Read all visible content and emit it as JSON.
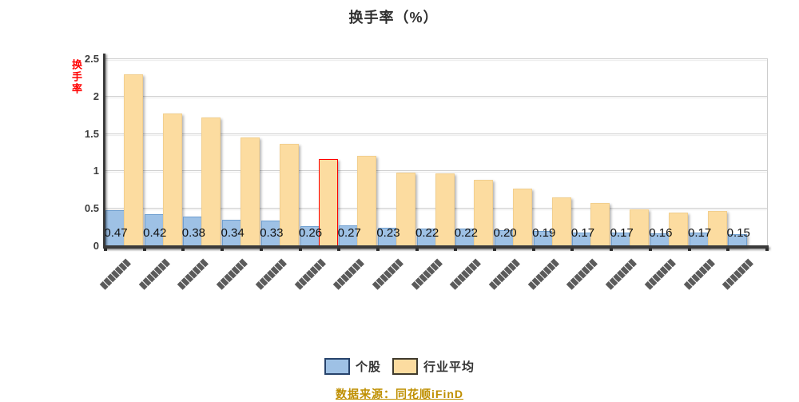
{
  "title": "换手率（%）",
  "y_axis": {
    "unit_label": "换手率",
    "tick_labels": [
      "0",
      "0.5",
      "1",
      "1.5",
      "2",
      "2.5"
    ]
  },
  "legend": {
    "series1_label": "个股",
    "series2_label": "行业平均"
  },
  "footer": {
    "source_link": "数据来源：同花顺iFinD"
  },
  "colors": {
    "series1_fill": "#9EC1E5",
    "series2_fill": "#FCDCA0",
    "highlight_border": "#FF0000",
    "unit_label_red": "#FF0000",
    "footer_gold": "#BF8F00",
    "grid": "#CFCFCF",
    "axis": "#3A3A3A"
  },
  "chart_data": {
    "type": "bar",
    "title": "换手率（%）",
    "xlabel": "",
    "ylabel": "换手率",
    "ylim": [
      0,
      2.5
    ],
    "yticks": [
      0,
      0.5,
      1,
      1.5,
      2,
      2.5
    ],
    "grid": true,
    "legend_position": "bottom",
    "categories_note": "x tick labels are rotated 45° and illegible in the source image",
    "categories": [
      "███████",
      "███████",
      "███████",
      "███████",
      "███████",
      "███████",
      "███████",
      "███████",
      "███████",
      "███████",
      "███████",
      "███████",
      "███████",
      "███████",
      "███████",
      "███████",
      "███████"
    ],
    "series": [
      {
        "name": "个股",
        "color": "#9EC1E5",
        "values": [
          0.47,
          0.42,
          0.38,
          0.34,
          0.33,
          0.26,
          0.27,
          0.23,
          0.22,
          0.22,
          0.2,
          0.19,
          0.17,
          0.17,
          0.16,
          0.17,
          0.15
        ],
        "data_labels": [
          "0.47",
          "0.42",
          "0.38",
          "0.34",
          "0.33",
          "0.26",
          "0.27",
          "0.23",
          "0.22",
          "0.22",
          "0.20",
          "0.19",
          "0.17",
          "0.17",
          "0.16",
          "0.17",
          "0.15"
        ]
      },
      {
        "name": "行业平均",
        "color": "#FCDCA0",
        "values": [
          2.29,
          1.76,
          1.71,
          1.44,
          1.36,
          1.15,
          1.2,
          0.97,
          0.96,
          0.88,
          0.76,
          0.64,
          0.57,
          0.48,
          0.44,
          0.46,
          null
        ],
        "highlight_index": 5,
        "highlight_border_color": "#FF0000"
      }
    ]
  }
}
